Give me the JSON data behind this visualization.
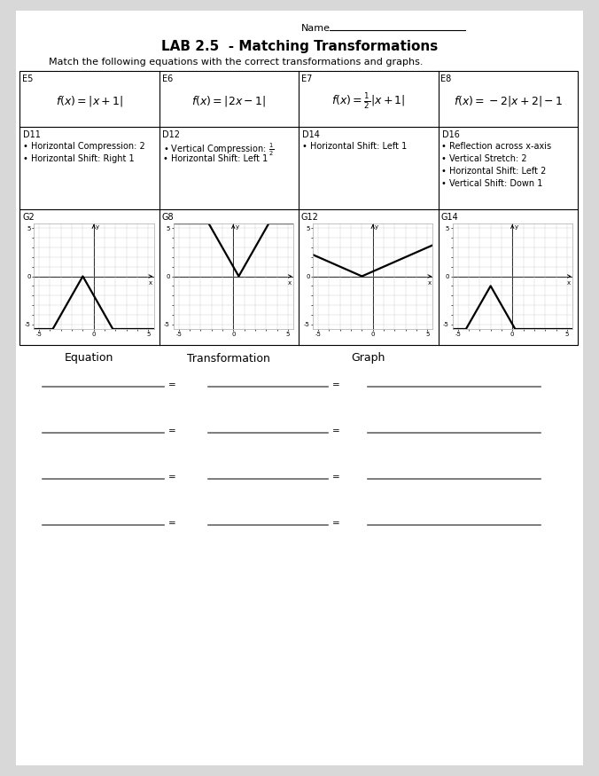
{
  "title": "LAB 2.5  - Matching Transformations",
  "subtitle": "Match the following equations with the correct transformations and graphs.",
  "name_label": "Name",
  "background_color": "#d8d8d8",
  "page_color": "#ffffff",
  "equations": [
    {
      "label": "E5",
      "text": "$f(x) = |x + 1|$"
    },
    {
      "label": "E6",
      "text": "$f(x) = |2x - 1|$"
    },
    {
      "label": "E7",
      "text": "$f(x) = \\frac{1}{2}|x + 1|$"
    },
    {
      "label": "E8",
      "text": "$f(x) = -2|x + 2| - 1$"
    }
  ],
  "descriptions": [
    {
      "label": "D11",
      "lines": [
        "• Horizontal Compression: 2",
        "• Horizontal Shift: Right 1"
      ]
    },
    {
      "label": "D12",
      "lines": [
        "• Vertical Compression: $\\frac{1}{2}$",
        "• Horizontal Shift: Left 1"
      ]
    },
    {
      "label": "D14",
      "lines": [
        "• Horizontal Shift: Left 1"
      ]
    },
    {
      "label": "D16",
      "lines": [
        "• Reflection across x-axis",
        "• Vertical Stretch: 2",
        "• Horizontal Shift: Left 2",
        "• Vertical Shift: Down 1"
      ]
    }
  ],
  "graph_params": [
    {
      "label": "G2",
      "sx": 1,
      "sy": -2,
      "shx": -1,
      "shy": 0
    },
    {
      "label": "G8",
      "sx": 2,
      "sy": 1,
      "shx": 0.5,
      "shy": 0
    },
    {
      "label": "G12",
      "sx": 1,
      "sy": 0.5,
      "shx": -1,
      "shy": 0
    },
    {
      "label": "G14",
      "sx": 1,
      "sy": -2,
      "shx": -2,
      "shy": -1
    }
  ],
  "footer_labels": [
    "Equation",
    "Transformation",
    "Graph"
  ],
  "answer_rows": 4
}
